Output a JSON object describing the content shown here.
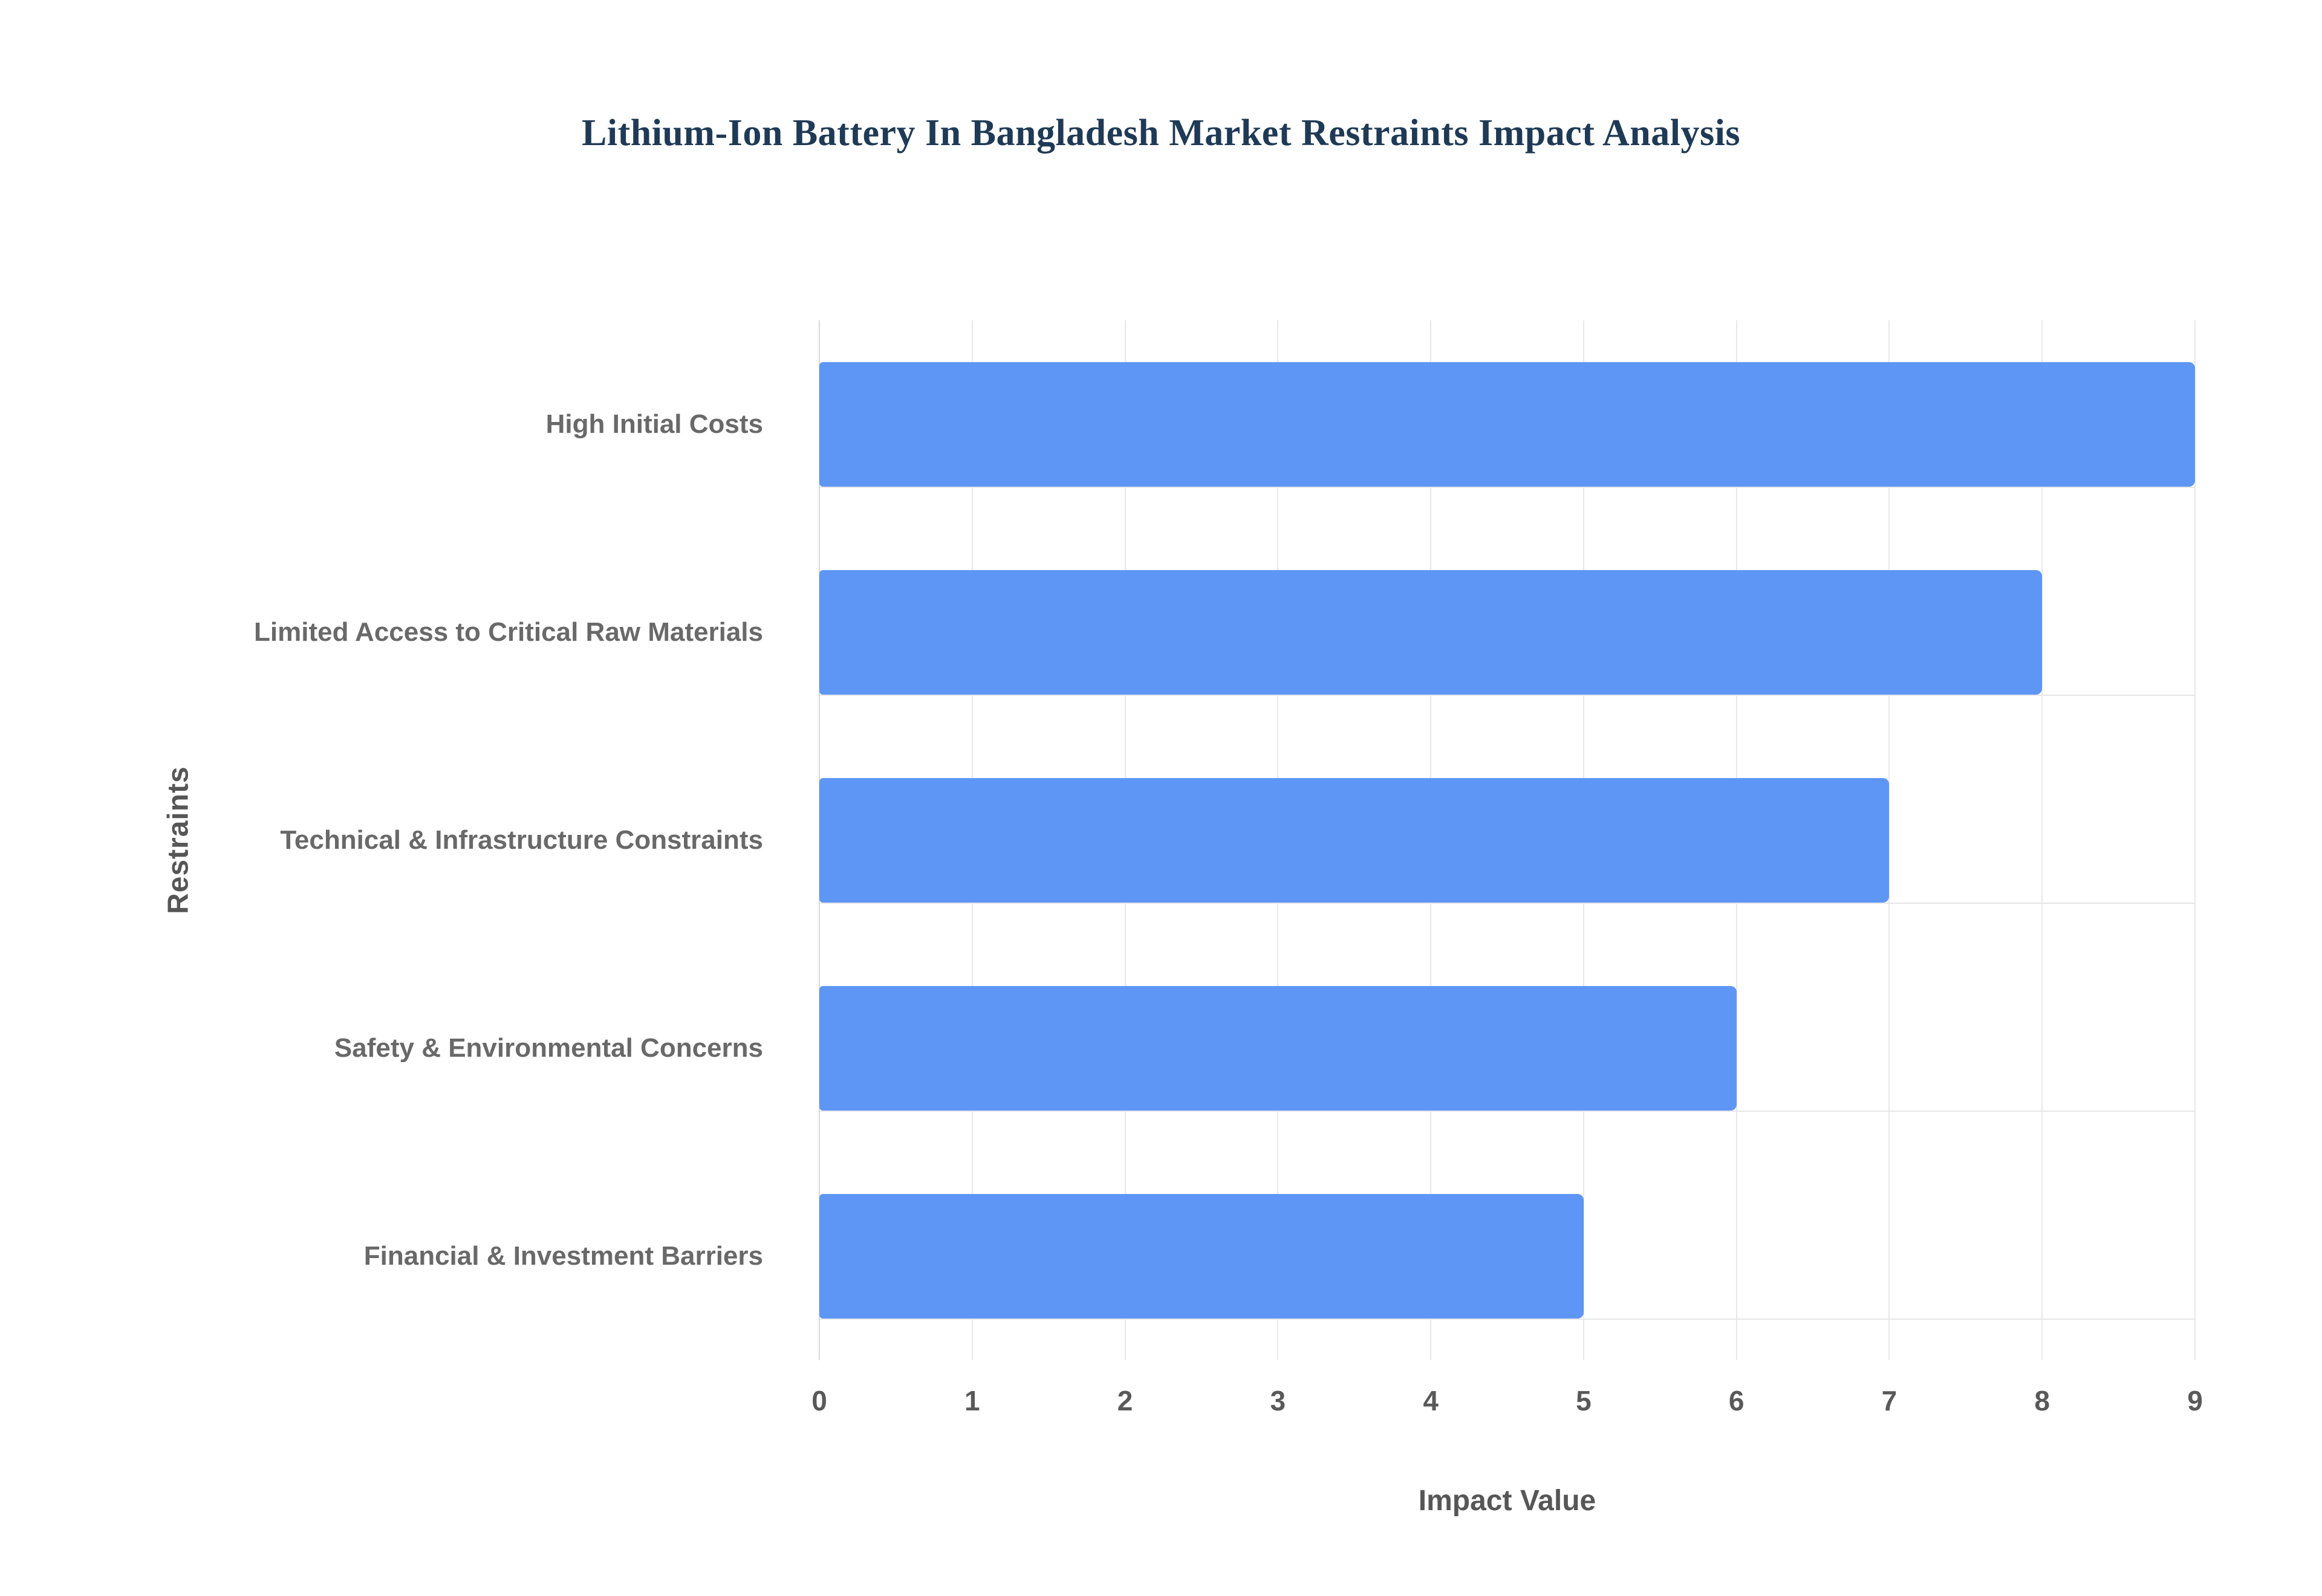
{
  "chart_data": {
    "type": "bar",
    "orientation": "horizontal",
    "title": "Lithium-Ion Battery In Bangladesh Market Restraints Impact Analysis",
    "categories": [
      "High Initial Costs",
      "Limited Access to Critical Raw Materials",
      "Technical & Infrastructure Constraints",
      "Safety & Environmental Concerns",
      "Financial & Investment Barriers"
    ],
    "values": [
      9,
      8,
      7,
      6,
      5
    ],
    "xlabel": "Impact Value",
    "ylabel": "Restraints",
    "xlim": [
      0,
      9
    ],
    "xticks": [
      0,
      1,
      2,
      3,
      4,
      5,
      6,
      7,
      8,
      9
    ],
    "grid": true,
    "legend": false,
    "bar_color": "#5e96f5",
    "title_color": "#1f3a56",
    "label_color": "#696969",
    "tick_color": "#595959"
  }
}
